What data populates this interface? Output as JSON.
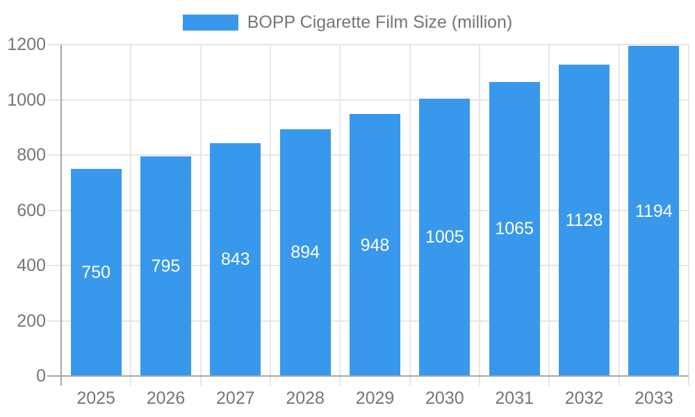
{
  "chart_data": {
    "type": "bar",
    "legend": {
      "position": "top-center",
      "label": "BOPP Cigarette Film Size (million)"
    },
    "series": [
      {
        "name": "BOPP Cigarette Film Size (million)",
        "values": [
          750,
          795,
          843,
          894,
          948,
          1005,
          1065,
          1128,
          1194
        ]
      }
    ],
    "categories": [
      "2025",
      "2026",
      "2027",
      "2028",
      "2029",
      "2030",
      "2031",
      "2032",
      "2033"
    ],
    "xlabel": "",
    "ylabel": "",
    "ylim": [
      0,
      1200
    ],
    "yticks": [
      0,
      200,
      400,
      600,
      800,
      1000,
      1200
    ],
    "grid": "on",
    "value_labels": "inside-bar-center",
    "colors": {
      "bar": "#3898EC",
      "bar_label_text": "#FFFFFF",
      "axis_text": "#757575",
      "grid_line": "#E6E6E6",
      "axis_line": "#A6A6A6",
      "background": "#FFFFFF"
    }
  }
}
